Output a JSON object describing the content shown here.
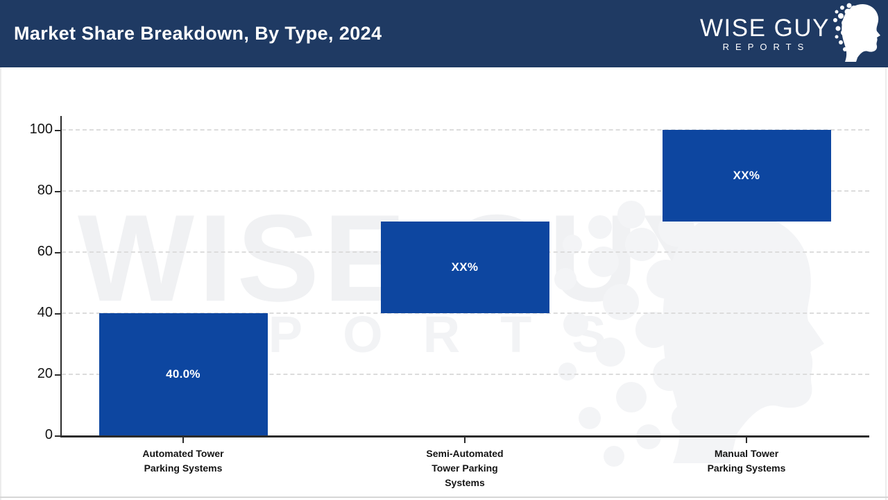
{
  "header": {
    "title": "Market Share Breakdown, By Type, 2024",
    "bg_color": "#1f3a63",
    "logo": {
      "line1": "WISE GUY",
      "line2": "REPORTS"
    }
  },
  "watermark": {
    "line1": "WISE GUY",
    "line2": "REPORTS"
  },
  "chart_data": {
    "type": "bar",
    "subtype": "floating-stacked-range",
    "title": "Market Share Breakdown, By Type, 2024",
    "categories": [
      "Automated Tower\nParking Systems",
      "Semi-Automated\nTower Parking\nSystems",
      "Manual Tower\nParking Systems"
    ],
    "series": [
      {
        "name": "Market Share %",
        "ranges": [
          [
            0,
            40
          ],
          [
            40,
            70
          ],
          [
            70,
            100
          ]
        ],
        "bar_labels": [
          "40.0%",
          "XX%",
          "XX%"
        ]
      }
    ],
    "xlabel": "",
    "ylabel": "",
    "ylim": [
      0,
      100
    ],
    "yticks": [
      0,
      20,
      40,
      60,
      80,
      100
    ],
    "grid": "horizontal-dashed",
    "legend": "none",
    "bar_color": "#0d46a0",
    "bar_label_color": "#ffffff",
    "axis_color": "#2b2b2b",
    "grid_color": "#dcdcdc"
  }
}
